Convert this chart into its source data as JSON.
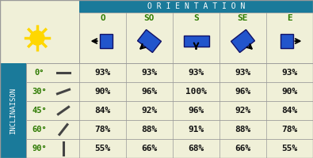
{
  "title": "ORIENTATION",
  "orientations": [
    "O",
    "SO",
    "S",
    "SE",
    "E"
  ],
  "inclinations": [
    "0°",
    "30°",
    "45°",
    "60°",
    "90°"
  ],
  "values": [
    [
      "93%",
      "93%",
      "93%",
      "93%",
      "93%"
    ],
    [
      "90%",
      "96%",
      "100%",
      "96%",
      "90%"
    ],
    [
      "84%",
      "92%",
      "96%",
      "92%",
      "84%"
    ],
    [
      "78%",
      "88%",
      "91%",
      "88%",
      "78%"
    ],
    [
      "55%",
      "66%",
      "68%",
      "66%",
      "55%"
    ]
  ],
  "bg_color": "#f0f0d8",
  "header_bg": "#1a7a9a",
  "left_header_bg": "#1a7a9a",
  "grid_color": "#999999",
  "orient_color": "#2d7a00",
  "incl_color": "#2d7a00",
  "value_color": "#111111",
  "panel_blue": "#2255cc",
  "panel_dark": "#111166",
  "sun_color": "#FFD700",
  "angle_icons": [
    0,
    20,
    35,
    52,
    90
  ]
}
